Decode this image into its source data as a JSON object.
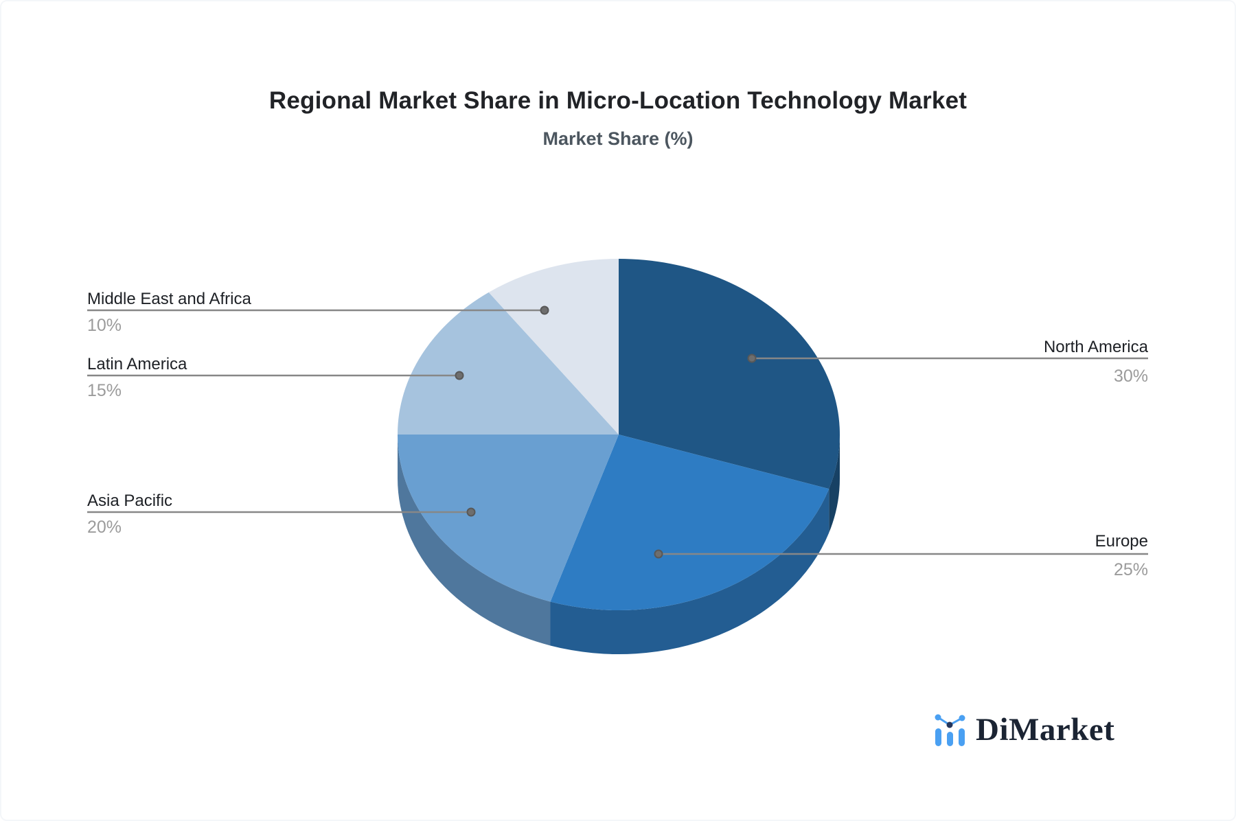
{
  "chart": {
    "title": "Regional Market Share in Micro-Location Technology Market",
    "subtitle": "Market Share (%)"
  },
  "chart_data": {
    "type": "pie",
    "effect": "3d",
    "title": "Regional Market Share in Micro-Location Technology Market",
    "subtitle": "Market Share (%)",
    "unit": "%",
    "start_angle": "12-oclock",
    "direction": "clockwise",
    "legend_position": "none",
    "labels": [
      "North America",
      "Europe",
      "Asia Pacific",
      "Latin America",
      "Middle East and Africa"
    ],
    "values": [
      30,
      25,
      20,
      15,
      10
    ],
    "display_values": [
      "30%",
      "25%",
      "20%",
      "15%",
      "10%"
    ],
    "colors": [
      "#1f5685",
      "#2e7cc3",
      "#699fd1",
      "#a6c3de",
      "#dde4ee"
    ],
    "connector_color": "#878787",
    "label_color": "#1d2025",
    "value_color": "#9b9b9b"
  },
  "brand": {
    "name": "DiMarket",
    "icon": "bar-line-chart-icon",
    "icon_color": "#4aa0f2",
    "icon_accent_color": "#24365c",
    "text_color": "#1b2433"
  }
}
